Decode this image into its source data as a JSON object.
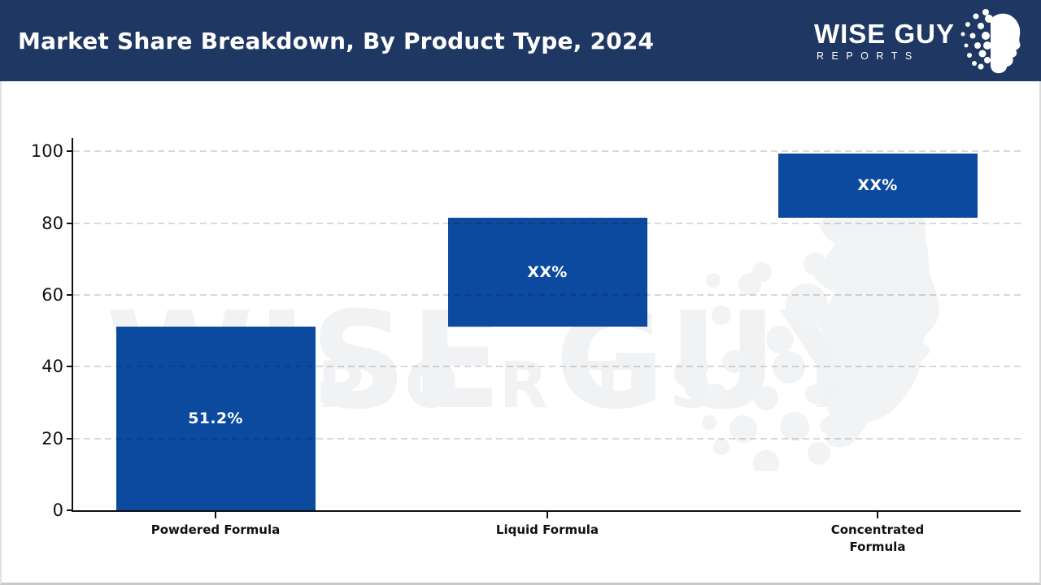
{
  "header": {
    "title": "Market Share Breakdown, By Product Type, 2024",
    "logo": {
      "line1": "WISE GUY",
      "line2": "REPORTS"
    }
  },
  "watermark": {
    "line1": "WISE GUY",
    "line2": "REPORTS"
  },
  "colors": {
    "header_bg": "#1f3763",
    "bar_fill": "#0b4a9e",
    "grid_dash": "#d9d9d9",
    "watermark": "#f1f2f4",
    "axis_text": "#111111",
    "title_text": "#ffffff"
  },
  "chart_data": {
    "type": "bar",
    "subtype": "stacked-floating-percentage",
    "title": "Market Share Breakdown, By Product Type, 2024",
    "categories": [
      "Powdered Formula",
      "Liquid Formula",
      "Concentrated Formula"
    ],
    "series": [
      {
        "name": "Market share (%)",
        "ranges": [
          [
            0,
            51.2
          ],
          [
            51.2,
            81.5
          ],
          [
            81.5,
            99.5
          ]
        ]
      }
    ],
    "bar_labels": [
      "51.2%",
      "XX%",
      "XX%"
    ],
    "yticks": [
      0,
      20,
      40,
      60,
      80,
      100
    ],
    "ylim": [
      0,
      103.7
    ],
    "xlabel": "",
    "ylabel": "",
    "grid": "horizontal-dashed",
    "legend": "none"
  }
}
